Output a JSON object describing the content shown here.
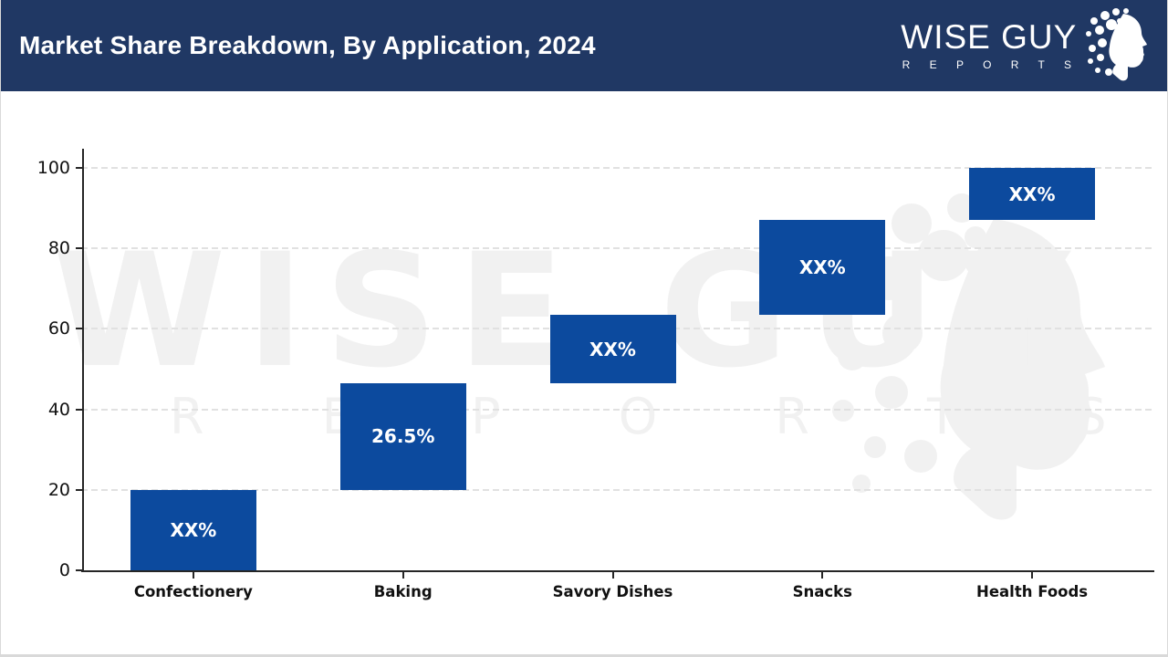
{
  "header": {
    "title": "Market Share Breakdown, By Application, 2024",
    "logo": {
      "line1": "WISE GUY",
      "line2": "R E P O R T S"
    }
  },
  "watermark": {
    "line1": "WISE GUY",
    "line2": "R E P O R T S"
  },
  "colors": {
    "header_bg": "#203864",
    "bar": "#0c4a9e",
    "grid": "#e1e1e1",
    "axis": "#262626",
    "bar_label": "#ffffff",
    "tick_text": "#111111",
    "watermark": "#f1f1f1",
    "page_border": "#d9d9d9"
  },
  "chart_data": {
    "type": "bar",
    "subtype": "floating-waterfall",
    "title": "Market Share Breakdown, By Application, 2024",
    "categories": [
      "Confectionery",
      "Baking",
      "Savory Dishes",
      "Snacks",
      "Health Foods"
    ],
    "bars": [
      {
        "category": "Confectionery",
        "start": 0,
        "end": 20,
        "label": "XX%"
      },
      {
        "category": "Baking",
        "start": 20,
        "end": 46.5,
        "label": "26.5%"
      },
      {
        "category": "Savory Dishes",
        "start": 46.5,
        "end": 63.5,
        "label": "XX%"
      },
      {
        "category": "Snacks",
        "start": 63.5,
        "end": 87,
        "label": "XX%"
      },
      {
        "category": "Health Foods",
        "start": 87,
        "end": 100,
        "label": "XX%"
      }
    ],
    "yticks": [
      0,
      20,
      40,
      60,
      80,
      100
    ],
    "ylim": [
      0,
      104.8
    ],
    "xlabel": "",
    "ylabel": "",
    "grid": "horizontal-dashed",
    "legend": "none"
  }
}
